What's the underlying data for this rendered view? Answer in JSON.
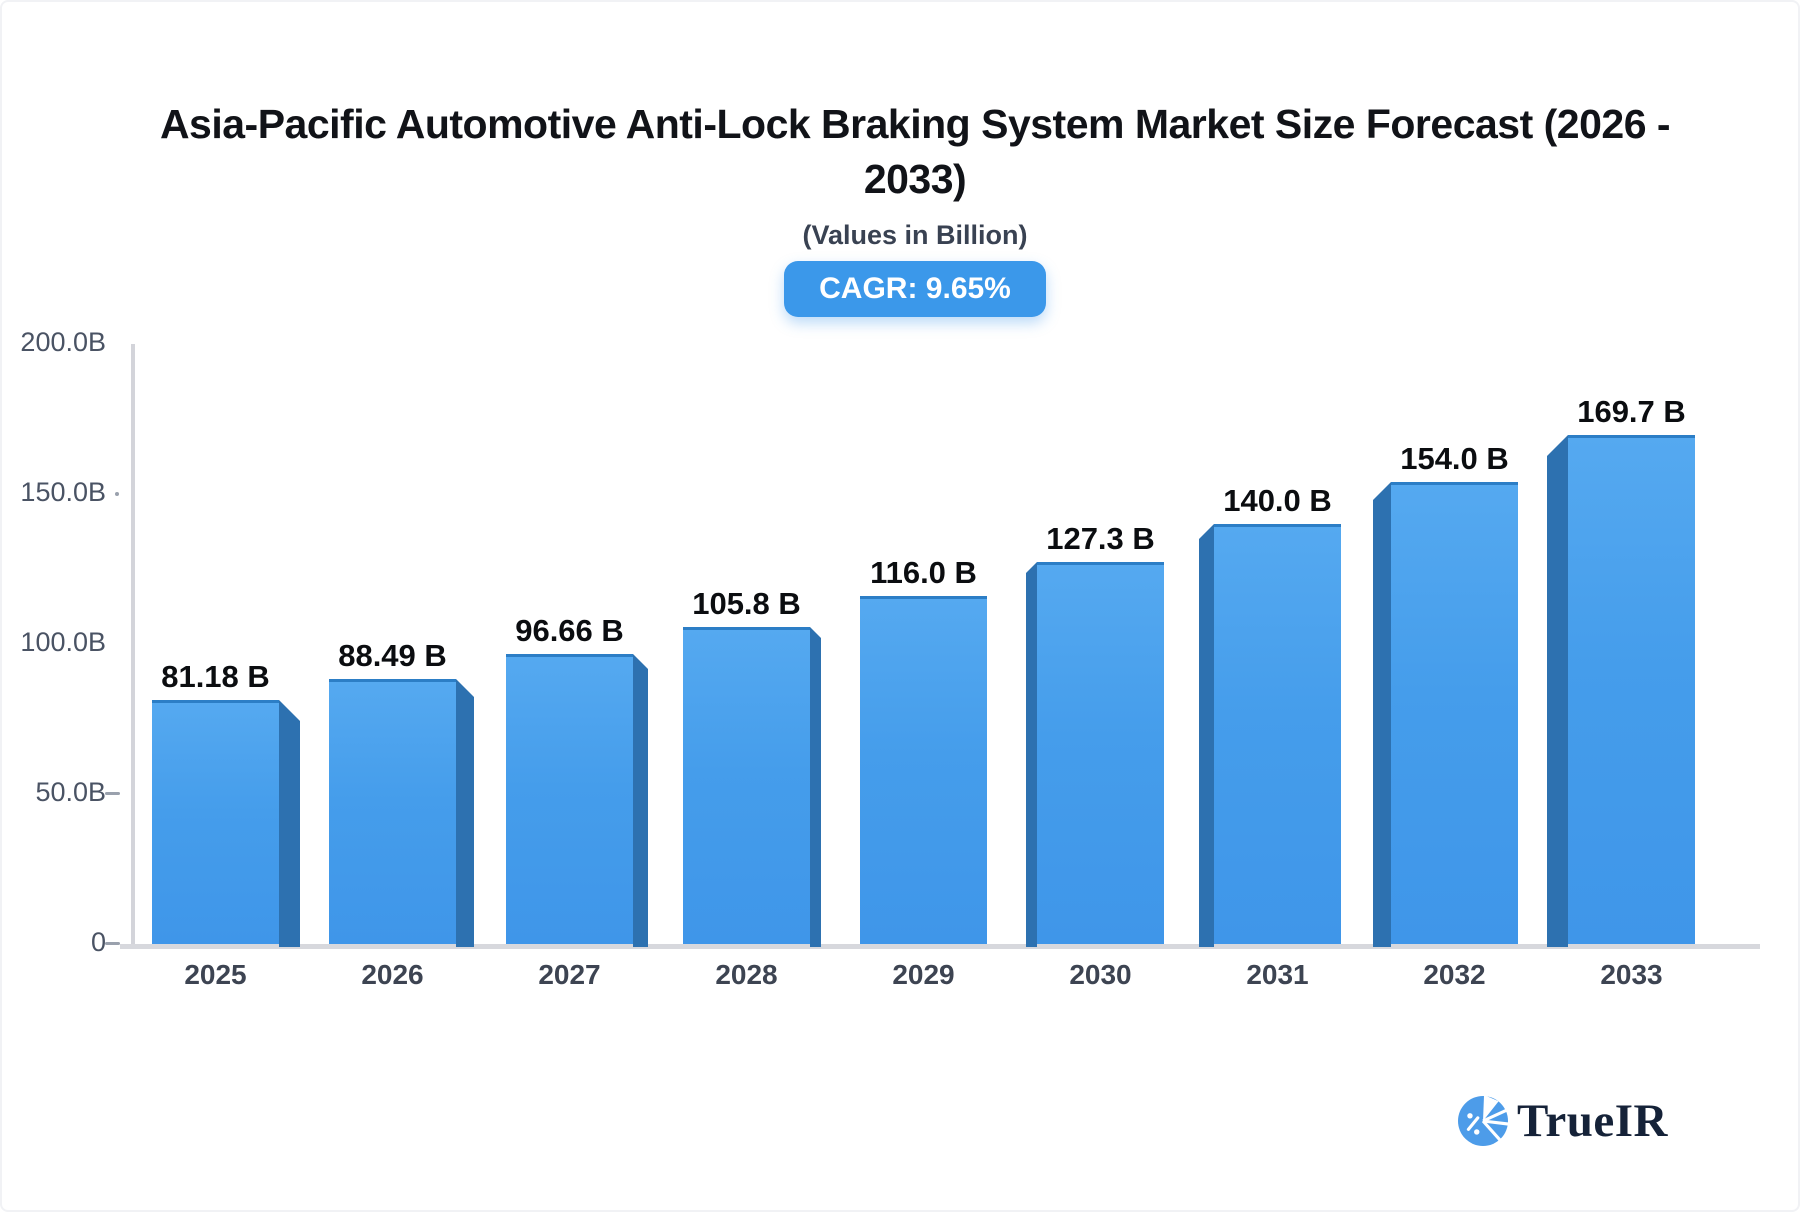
{
  "header": {
    "title_line1": "Asia-Pacific Automotive Anti-Lock Braking System Market Size Forecast (2026 -",
    "title_line2": "2033)",
    "subtitle": "(Values in Billion)",
    "cagr_badge": "CAGR: 9.65%"
  },
  "chart_data": {
    "type": "bar",
    "title": "Asia-Pacific Automotive Anti-Lock Braking System Market Size Forecast (2026 - 2033)",
    "subtitle": "(Values in Billion)",
    "cagr": "9.65%",
    "unit": "Billion USD",
    "categories": [
      "2025",
      "2026",
      "2027",
      "2028",
      "2029",
      "2030",
      "2031",
      "2032",
      "2033"
    ],
    "values": [
      81.18,
      88.49,
      96.66,
      105.8,
      116.0,
      127.3,
      140.0,
      154.0,
      169.7
    ],
    "value_labels": [
      "81.18 B",
      "88.49 B",
      "96.66 B",
      "105.8 B",
      "116.0 B",
      "127.3 B",
      "140.0 B",
      "154.0 B",
      "169.7 B"
    ],
    "ylim": [
      0,
      200
    ],
    "yticks": [
      {
        "value": 200,
        "label": "200.0B",
        "marker": "none"
      },
      {
        "value": 150,
        "label": "150.0B",
        "marker": "dot"
      },
      {
        "value": 100,
        "label": "100.0B",
        "marker": "none"
      },
      {
        "value": 50,
        "label": "50.0B",
        "marker": "dash"
      },
      {
        "value": 0,
        "label": "0",
        "marker": "dash"
      }
    ],
    "grid": "off",
    "legend": "none",
    "bar_face_color_top": "#55a9f0",
    "bar_face_color_bottom": "#3f96e9",
    "bar_side_color": "#2d71b0",
    "style": "3d-perspective-center"
  },
  "branding": {
    "logo_text": "TrueIR",
    "logo_icon": "pie-percent-icon",
    "icon_color": "#4d9ce9",
    "text_color": "#152238"
  }
}
